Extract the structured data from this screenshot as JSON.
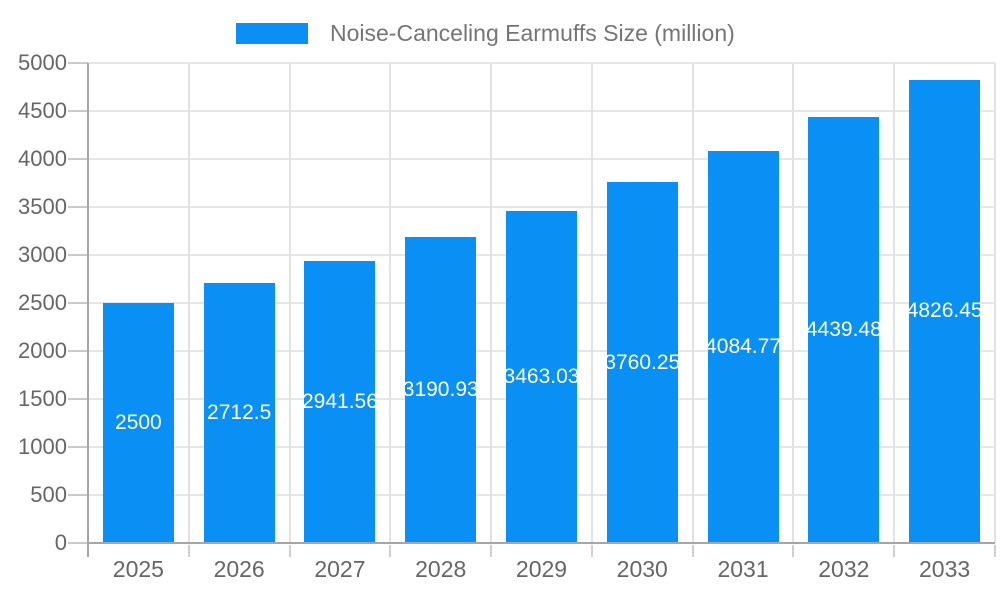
{
  "legend": {
    "label": "Noise-Canceling Earmuffs Size (million)"
  },
  "chart_data": {
    "type": "bar",
    "title": "Noise-Canceling Earmuffs Size (million)",
    "categories": [
      "2025",
      "2026",
      "2027",
      "2028",
      "2029",
      "2030",
      "2031",
      "2032",
      "2033"
    ],
    "series": [
      {
        "name": "Noise-Canceling Earmuffs Size (million)",
        "values": [
          2500,
          2712.5,
          2941.56,
          3190.93,
          3463.03,
          3760.25,
          4084.77,
          4439.48,
          4826.45
        ]
      }
    ],
    "bar_labels": [
      "2500",
      "2712.5",
      "2941.56",
      "3190.93",
      "3463.03",
      "3760.25",
      "4084.77",
      "4439.48",
      "4826.45"
    ],
    "xlabel": "",
    "ylabel": "",
    "ylim": [
      0,
      5000
    ],
    "yticks": [
      0,
      500,
      1000,
      1500,
      2000,
      2500,
      3000,
      3500,
      4000,
      4500,
      5000
    ],
    "ytick_labels": [
      "0",
      "500",
      "1000",
      "1500",
      "2000",
      "2500",
      "3000",
      "3500",
      "4000",
      "4500",
      "5000"
    ],
    "grid": true,
    "legend_position": "top-center",
    "value_label_position": "inside-center",
    "colors": {
      "bar": "#0a8ff5",
      "grid_h": "#e6e6e6",
      "grid_v": "#e2e2e2",
      "axis": "#a6a6a6",
      "y_tick": "#c9c9c9",
      "x_tick": "#cfcfcf",
      "axis_label_text": "#666666",
      "legend_text": "#757575",
      "bar_label_text": "#ffffff",
      "background": "#ffffff"
    }
  }
}
